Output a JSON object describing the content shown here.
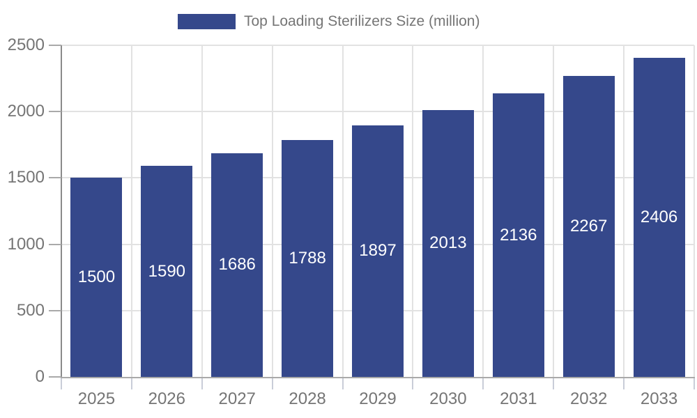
{
  "legend": {
    "label": "Top Loading Sterilizers Size (million)"
  },
  "chart_data": {
    "type": "bar",
    "title": "Top Loading Sterilizers Size (million)",
    "categories": [
      "2025",
      "2026",
      "2027",
      "2028",
      "2029",
      "2030",
      "2031",
      "2032",
      "2033"
    ],
    "values": [
      1500,
      1590,
      1686,
      1788,
      1897,
      2013,
      2136,
      2267,
      2406
    ],
    "xlabel": "",
    "ylabel": "",
    "ylim": [
      0,
      2500
    ],
    "yticks": [
      0,
      500,
      1000,
      1500,
      2000,
      2500
    ],
    "grid": true,
    "legend_position": "top",
    "colors": {
      "bar": "#35488B",
      "value_label": "#FFFFFF",
      "axis_text": "#757575",
      "gridline": "#E2E2E2",
      "y_axis_line": "#8A8A8A",
      "x_axis_line": "#A9A9A9",
      "y_tick": "#A9A9A9",
      "x_tick": "#C9CDD8",
      "background": "#FFFFFF"
    }
  }
}
